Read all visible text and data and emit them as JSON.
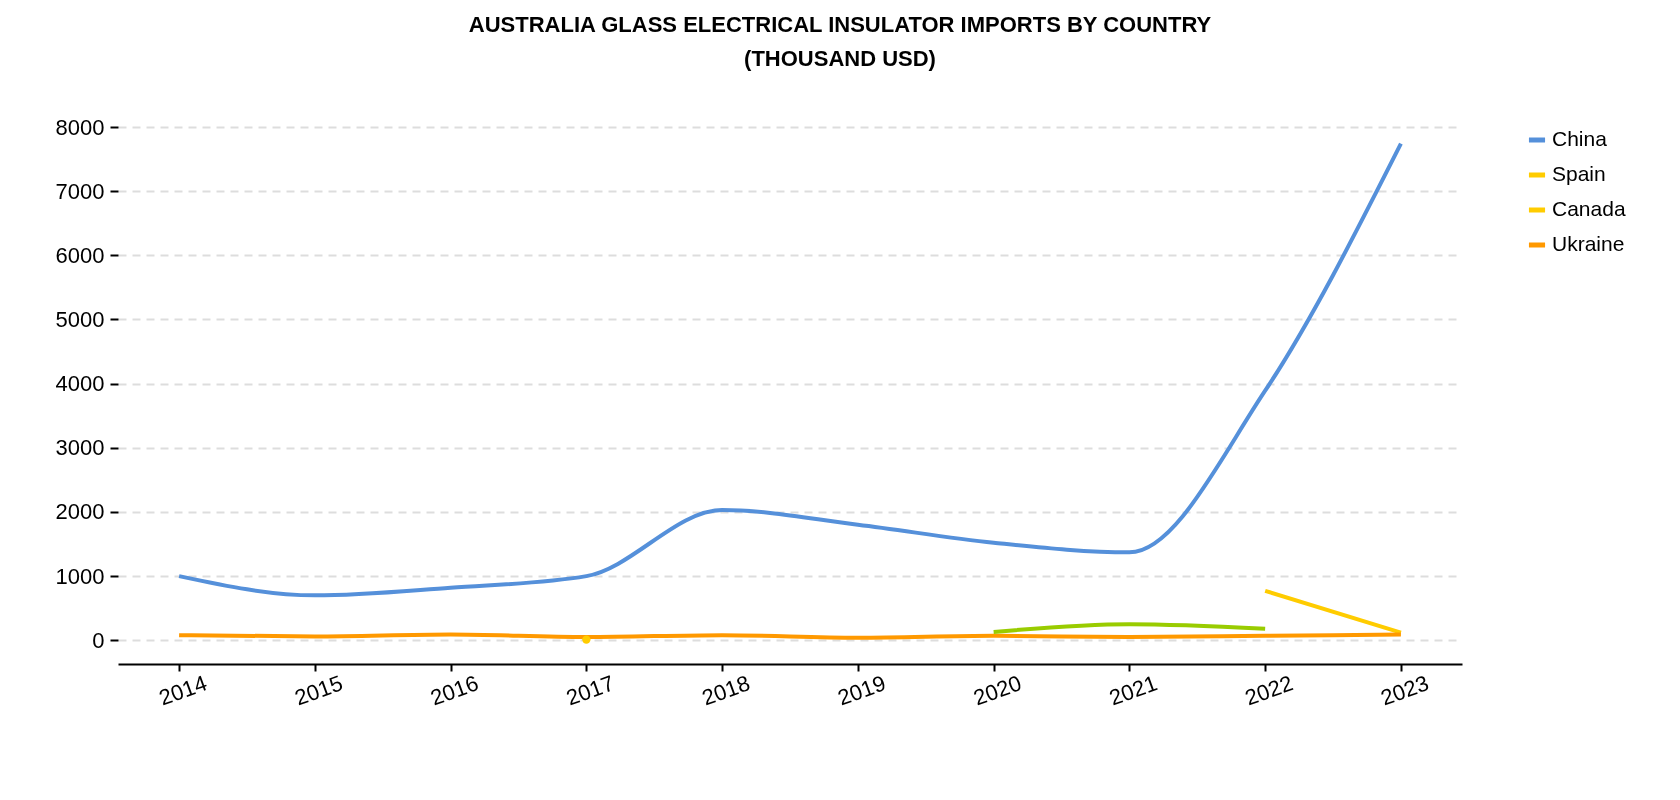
{
  "chart_data": {
    "type": "line",
    "title": "AUSTRALIA GLASS ELECTRICAL INSULATOR IMPORTS BY COUNTRY",
    "subtitle": "(THOUSAND USD)",
    "categories": [
      "2014",
      "2015",
      "2016",
      "2017",
      "2018",
      "2019",
      "2020",
      "2021",
      "2022",
      "2023"
    ],
    "series": [
      {
        "name": "China",
        "color": "#5590da",
        "values": [
          1000,
          700,
          820,
          1000,
          2030,
          1800,
          1520,
          1370,
          3890,
          7740
        ]
      },
      {
        "name": "Spain",
        "color": "#ffcc00",
        "values": [
          null,
          null,
          null,
          null,
          null,
          null,
          null,
          null,
          770,
          120
        ]
      },
      {
        "name": "Canada",
        "color": "#ffcc00",
        "marker": "circle",
        "values": [
          null,
          null,
          null,
          10,
          null,
          null,
          null,
          null,
          null,
          null
        ]
      },
      {
        "name": "Ukraine",
        "color": "#ff9900",
        "values": [
          80,
          60,
          90,
          50,
          80,
          40,
          70,
          50,
          70,
          90
        ]
      },
      {
        "color": "#99cc00",
        "values": [
          null,
          null,
          null,
          null,
          null,
          null,
          130,
          250,
          180,
          null
        ]
      }
    ],
    "ylim": [
      -370,
      8000
    ],
    "yticks": [
      0,
      1000,
      2000,
      3000,
      4000,
      5000,
      6000,
      7000,
      8000
    ],
    "grid": "y",
    "legend": "top right"
  }
}
